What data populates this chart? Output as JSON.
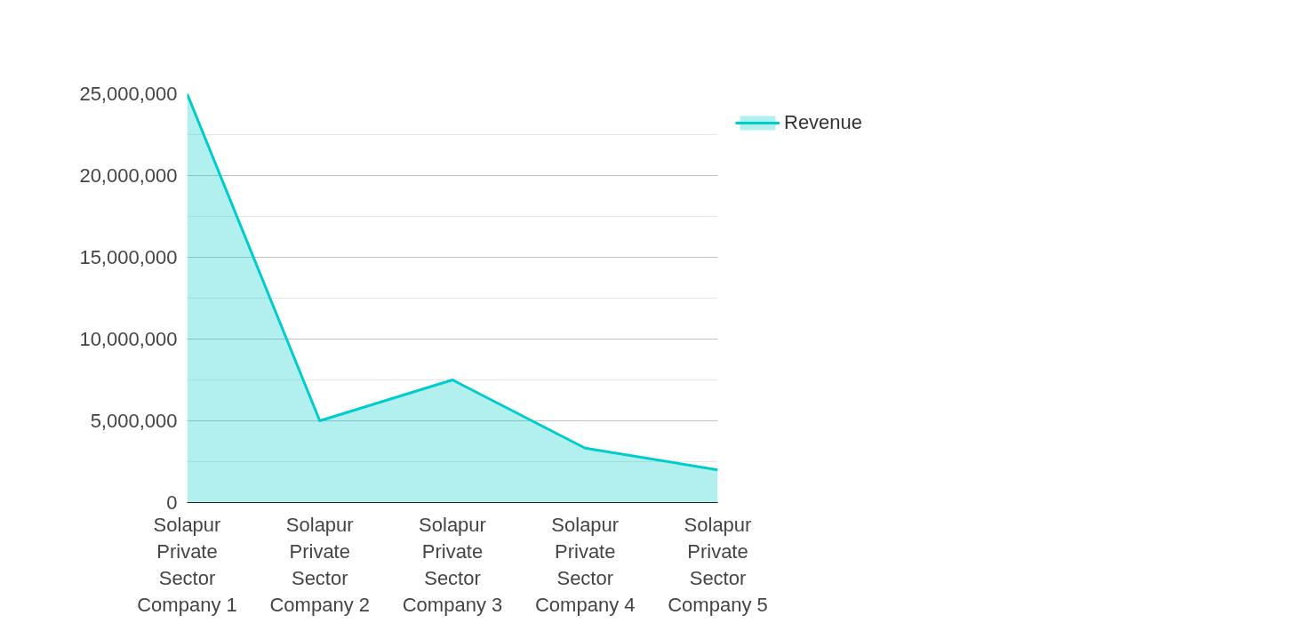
{
  "chart_data": {
    "type": "area",
    "categories": [
      "Solapur Private Sector Company 1",
      "Solapur Private Sector Company 2",
      "Solapur Private Sector Company 3",
      "Solapur Private Sector Company 4",
      "Solapur Private Sector Company 5"
    ],
    "series": [
      {
        "name": "Revenue",
        "color": "#00cccc",
        "values": [
          25000000,
          5000000,
          7500000,
          3330000,
          2000000
        ]
      }
    ],
    "ylim": [
      0,
      25000000
    ],
    "yticks": [
      {
        "value": 0,
        "label": "0"
      },
      {
        "value": 5000000,
        "label": "5,000,000"
      },
      {
        "value": 10000000,
        "label": "10,000,000"
      },
      {
        "value": 15000000,
        "label": "15,000,000"
      },
      {
        "value": 20000000,
        "label": "20,000,000"
      },
      {
        "value": 25000000,
        "label": "25,000,000"
      }
    ],
    "grid": "y",
    "legend": "top right"
  }
}
